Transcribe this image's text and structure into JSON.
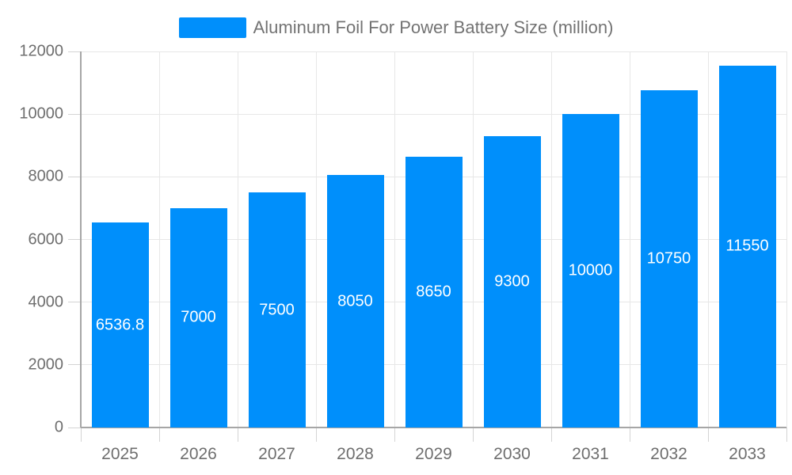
{
  "chart_data": {
    "type": "bar",
    "series_name": "Aluminum Foil For Power Battery Size (million)",
    "categories": [
      "2025",
      "2026",
      "2027",
      "2028",
      "2029",
      "2030",
      "2031",
      "2032",
      "2033"
    ],
    "values": [
      6536.8,
      7000,
      7500,
      8050,
      8650,
      9300,
      10000,
      10750,
      11550
    ],
    "data_labels": [
      "6536.8",
      "7000",
      "7500",
      "8050",
      "8650",
      "9300",
      "10000",
      "10750",
      "11550"
    ],
    "ylim": [
      0,
      12000
    ],
    "yticks": [
      0,
      2000,
      4000,
      6000,
      8000,
      10000,
      12000
    ],
    "ytick_labels": [
      "0",
      "2000",
      "4000",
      "6000",
      "8000",
      "10000",
      "12000"
    ],
    "legend_position": "top",
    "grid": "both",
    "colors": {
      "bar": "#008FFB",
      "grid": "#e7e7e7",
      "tick": "#d4d4d4",
      "axis": "#a6a6a6",
      "axis_label": "#6e6e6e",
      "legend_text": "#737373",
      "value_label": "#ffffff",
      "background": "#ffffff"
    }
  }
}
